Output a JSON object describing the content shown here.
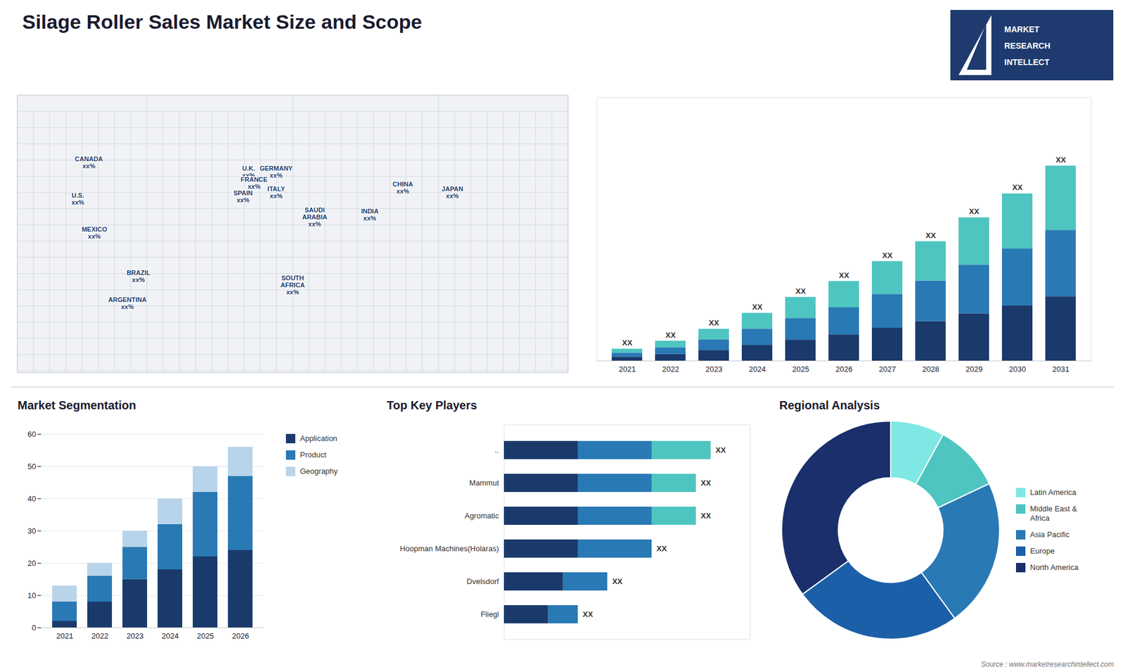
{
  "title": "Silage Roller Sales Market Size and Scope",
  "annotations": [
    "MARKET",
    "RESEARCH",
    "INTELLECT",
    "Source : www.marketresearchintellect.com"
  ],
  "chart_data": [
    {
      "type": "map",
      "categories": [
        "CANADA",
        "U.S.",
        "MEXICO",
        "BRAZIL",
        "ARGENTINA",
        "U.K.",
        "FRANCE",
        "SPAIN",
        "GERMANY",
        "ITALY",
        "SAUDI\nARABIA",
        "SOUTH\nAFRICA",
        "CHINA",
        "INDIA",
        "JAPAN"
      ],
      "value_labels": [
        "xx%",
        "xx%",
        "xx%",
        "xx%",
        "xx%",
        "xx%",
        "xx%",
        "xx%",
        "xx%",
        "xx%",
        "xx%",
        "xx%",
        "xx%",
        "xx%",
        "xx%"
      ]
    },
    {
      "type": "bar",
      "stacked": true,
      "categories": [
        2021,
        2022,
        2023,
        2024,
        2025,
        2026,
        2027,
        2028,
        2029,
        2030,
        2031
      ],
      "series": [
        {
          "color": "#1a3a6b",
          "values": [
            0.99,
            1.65,
            2.64,
            3.96,
            5.28,
            6.6,
            8.25,
            9.9,
            11.88,
            13.86,
            16.17
          ]
        },
        {
          "color": "#2979b5",
          "values": [
            1.02,
            1.7,
            2.72,
            4.08,
            5.44,
            6.8,
            8.5,
            10.2,
            12.24,
            14.28,
            16.66
          ]
        },
        {
          "color": "#4ec5c1",
          "values": [
            0.99,
            1.65,
            2.64,
            3.96,
            5.28,
            6.6,
            8.25,
            9.9,
            11.88,
            13.86,
            16.17
          ],
          "value_labels": [
            "XX",
            "XX",
            "XX",
            "XX",
            "XX",
            "XX",
            "XX",
            "XX",
            "XX",
            "XX",
            "XX"
          ]
        }
      ],
      "ylim": [
        0,
        66.15
      ],
      "tick_labels": "x",
      "grid": false
    },
    {
      "type": "bar",
      "title": "Market Segmentation",
      "stacked": true,
      "categories": [
        "2021",
        "2022",
        "2023",
        "2024",
        "2025",
        "2026"
      ],
      "series": [
        {
          "name": "Application",
          "color": "#1a3a6b",
          "values": [
            2,
            8,
            15,
            18,
            22,
            24
          ]
        },
        {
          "name": "Product",
          "color": "#2979b5",
          "values": [
            6,
            8,
            10,
            14,
            20,
            23
          ]
        },
        {
          "name": "Geography",
          "color": "#b8d4ea",
          "values": [
            5,
            4,
            5,
            8,
            8,
            9
          ]
        }
      ],
      "ylim": [
        0,
        60
      ],
      "yticks": [
        0,
        10,
        20,
        30,
        40,
        50,
        60
      ],
      "grid": true,
      "legend": "right"
    },
    {
      "type": "bar",
      "title": "Top Key Players",
      "orientation": "horizontal",
      "stacked": true,
      "categories": [
        "..",
        "Mammut",
        "Agromatic",
        "Hoopman Machines(Holaras)",
        "Dvelsdorf",
        "Fliegl"
      ],
      "series": [
        {
          "color": "#1a3a6b",
          "values": [
            60,
            60,
            60,
            60,
            48,
            36
          ]
        },
        {
          "color": "#2979b5",
          "values": [
            60,
            60,
            60,
            60,
            36,
            24
          ]
        },
        {
          "color": "#4ec5c1",
          "values": [
            48,
            36,
            36,
            0,
            0,
            0
          ],
          "value_labels": [
            "XX",
            "XX",
            "XX",
            "XX",
            "XX",
            "XX"
          ]
        }
      ],
      "xlim": [
        0,
        200
      ],
      "tick_labels": "y",
      "grid": false
    },
    {
      "type": "donut",
      "title": "Regional Analysis",
      "categories": [
        "Latin America",
        "Middle East &\nAfrica",
        "Asia Pacific",
        "Europe",
        "North America"
      ],
      "values": [
        8,
        10,
        22,
        25,
        35
      ],
      "colors": [
        "#7fe8e4",
        "#4ec5c1",
        "#2979b5",
        "#1a5fa8",
        "#1a2f6b"
      ],
      "legend": "right"
    }
  ]
}
